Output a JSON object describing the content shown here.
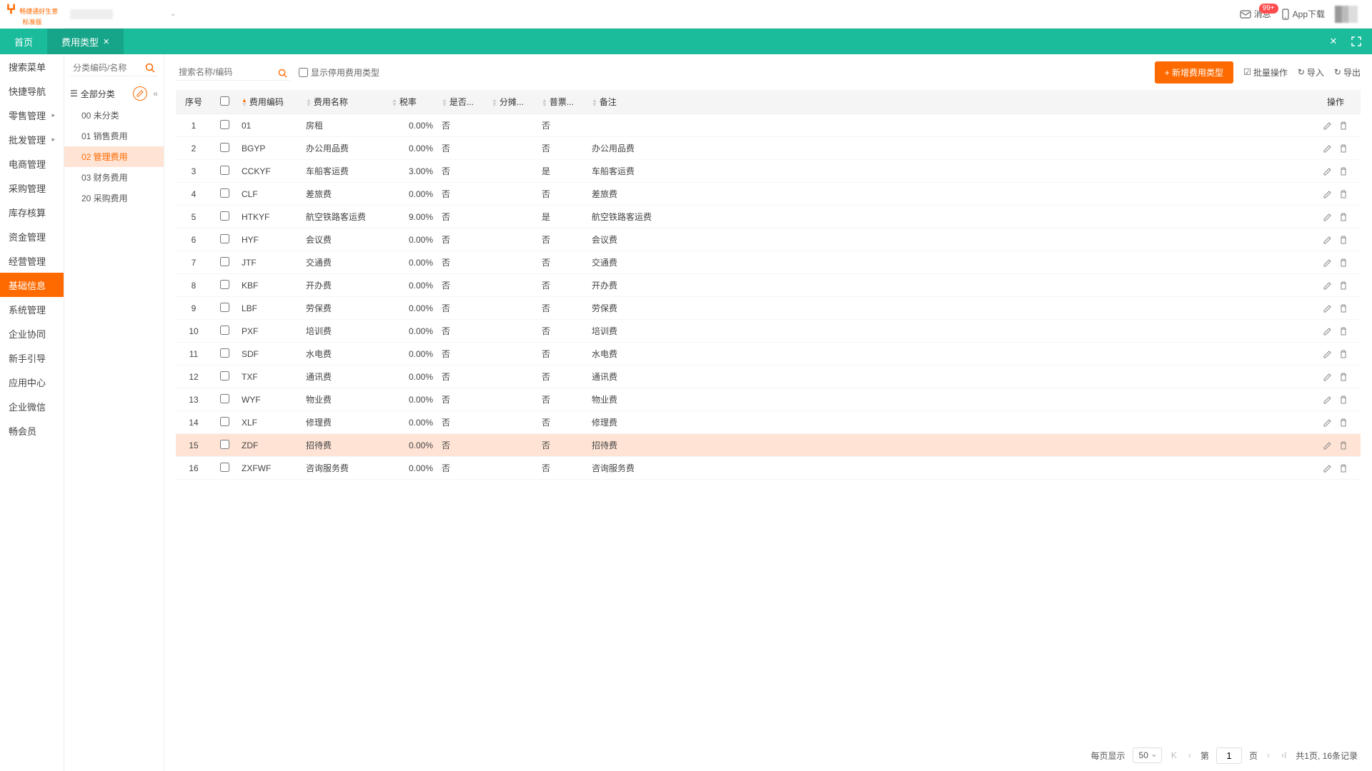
{
  "header": {
    "logo_brand": "畅捷通好生意",
    "logo_sub": "标准版",
    "message_label": "消息",
    "message_badge": "99+",
    "download_label": "App下载"
  },
  "tabs": {
    "home": "首页",
    "expense_type": "费用类型"
  },
  "sidebar": {
    "items": [
      {
        "label": "搜索菜单",
        "arrow": false
      },
      {
        "label": "快捷导航",
        "arrow": false
      },
      {
        "label": "零售管理",
        "arrow": true
      },
      {
        "label": "批发管理",
        "arrow": true
      },
      {
        "label": "电商管理",
        "arrow": false
      },
      {
        "label": "采购管理",
        "arrow": false
      },
      {
        "label": "库存核算",
        "arrow": false
      },
      {
        "label": "资金管理",
        "arrow": false
      },
      {
        "label": "经营管理",
        "arrow": false
      },
      {
        "label": "基础信息",
        "arrow": false,
        "active": true
      },
      {
        "label": "系统管理",
        "arrow": false
      },
      {
        "label": "企业协同",
        "arrow": false
      },
      {
        "label": "新手引导",
        "arrow": false
      },
      {
        "label": "应用中心",
        "arrow": false
      },
      {
        "label": "企业微信",
        "arrow": false
      },
      {
        "label": "畅会员",
        "arrow": false
      }
    ]
  },
  "category": {
    "search_placeholder": "分类编码/名称",
    "all_label": "全部分类",
    "items": [
      {
        "label": "00 未分类"
      },
      {
        "label": "01 销售费用"
      },
      {
        "label": "02 管理费用",
        "active": true
      },
      {
        "label": "03 财务费用"
      },
      {
        "label": "20 采购费用"
      }
    ]
  },
  "toolbar": {
    "search_placeholder": "搜索名称/编码",
    "show_disabled_label": "显示停用费用类型",
    "add_button": "+ 新增费用类型",
    "batch_ops": "批量操作",
    "import": "导入",
    "export": "导出"
  },
  "table": {
    "columns": {
      "seq": "序号",
      "code": "费用编码",
      "name": "费用名称",
      "rate": "税率",
      "flag": "是否...",
      "share": "分摊...",
      "invoice": "普票...",
      "remark": "备注",
      "ops": "操作"
    },
    "rows": [
      {
        "seq": 1,
        "code": "01",
        "name": "房租",
        "rate": "0.00%",
        "flag": "否",
        "share": "",
        "invoice": "否",
        "remark": ""
      },
      {
        "seq": 2,
        "code": "BGYP",
        "name": "办公用品费",
        "rate": "0.00%",
        "flag": "否",
        "share": "",
        "invoice": "否",
        "remark": "办公用品费"
      },
      {
        "seq": 3,
        "code": "CCKYF",
        "name": "车船客运费",
        "rate": "3.00%",
        "flag": "否",
        "share": "",
        "invoice": "是",
        "remark": "车船客运费"
      },
      {
        "seq": 4,
        "code": "CLF",
        "name": "差旅费",
        "rate": "0.00%",
        "flag": "否",
        "share": "",
        "invoice": "否",
        "remark": "差旅费"
      },
      {
        "seq": 5,
        "code": "HTKYF",
        "name": "航空铁路客运费",
        "rate": "9.00%",
        "flag": "否",
        "share": "",
        "invoice": "是",
        "remark": "航空铁路客运费"
      },
      {
        "seq": 6,
        "code": "HYF",
        "name": "会议费",
        "rate": "0.00%",
        "flag": "否",
        "share": "",
        "invoice": "否",
        "remark": "会议费"
      },
      {
        "seq": 7,
        "code": "JTF",
        "name": "交通费",
        "rate": "0.00%",
        "flag": "否",
        "share": "",
        "invoice": "否",
        "remark": "交通费"
      },
      {
        "seq": 8,
        "code": "KBF",
        "name": "开办费",
        "rate": "0.00%",
        "flag": "否",
        "share": "",
        "invoice": "否",
        "remark": "开办费"
      },
      {
        "seq": 9,
        "code": "LBF",
        "name": "劳保费",
        "rate": "0.00%",
        "flag": "否",
        "share": "",
        "invoice": "否",
        "remark": "劳保费"
      },
      {
        "seq": 10,
        "code": "PXF",
        "name": "培训费",
        "rate": "0.00%",
        "flag": "否",
        "share": "",
        "invoice": "否",
        "remark": "培训费"
      },
      {
        "seq": 11,
        "code": "SDF",
        "name": "水电费",
        "rate": "0.00%",
        "flag": "否",
        "share": "",
        "invoice": "否",
        "remark": "水电费"
      },
      {
        "seq": 12,
        "code": "TXF",
        "name": "通讯费",
        "rate": "0.00%",
        "flag": "否",
        "share": "",
        "invoice": "否",
        "remark": "通讯费"
      },
      {
        "seq": 13,
        "code": "WYF",
        "name": "物业费",
        "rate": "0.00%",
        "flag": "否",
        "share": "",
        "invoice": "否",
        "remark": "物业费"
      },
      {
        "seq": 14,
        "code": "XLF",
        "name": "修理费",
        "rate": "0.00%",
        "flag": "否",
        "share": "",
        "invoice": "否",
        "remark": "修理费"
      },
      {
        "seq": 15,
        "code": "ZDF",
        "name": "招待费",
        "rate": "0.00%",
        "flag": "否",
        "share": "",
        "invoice": "否",
        "remark": "招待费",
        "highlighted": true
      },
      {
        "seq": 16,
        "code": "ZXFWF",
        "name": "咨询服务费",
        "rate": "0.00%",
        "flag": "否",
        "share": "",
        "invoice": "否",
        "remark": "咨询服务费"
      }
    ]
  },
  "pagination": {
    "per_page_label": "每页显示",
    "per_page_value": "50",
    "page_label_prefix": "第",
    "page_value": "1",
    "page_label_suffix": "页",
    "total_text": "共1页, 16条记录"
  }
}
